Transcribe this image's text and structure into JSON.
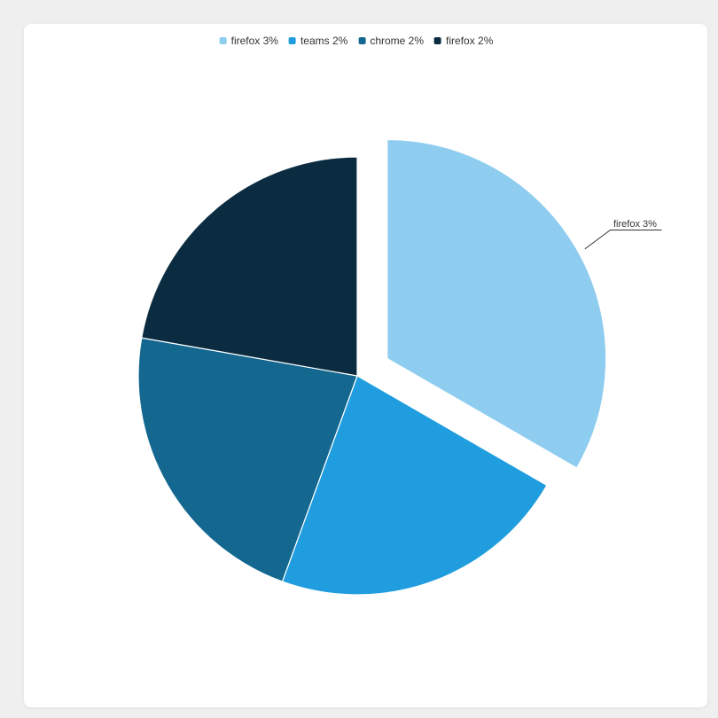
{
  "page": {
    "background_color": "#efefef",
    "card_background_color": "#ffffff",
    "text_color": "#333333"
  },
  "chart_data": {
    "type": "pie",
    "title": "",
    "legend_position": "top",
    "direction": "clockwise",
    "start_angle_deg": 0,
    "categories": [
      "firefox",
      "teams",
      "chrome",
      "firefox"
    ],
    "values": [
      3,
      2,
      2,
      2
    ],
    "slices": [
      {
        "label": "firefox",
        "legend_label": "firefox 3%",
        "value": 3,
        "percent_text": "3%",
        "color": "#8ECDF0",
        "exploded": true
      },
      {
        "label": "teams",
        "legend_label": "teams 2%",
        "value": 2,
        "percent_text": "2%",
        "color": "#1F9DDE",
        "exploded": false
      },
      {
        "label": "chrome",
        "legend_label": "chrome 2%",
        "value": 2,
        "percent_text": "2%",
        "color": "#146890",
        "exploded": false
      },
      {
        "label": "firefox",
        "legend_label": "firefox 2%",
        "value": 2,
        "percent_text": "2%",
        "color": "#0B2C40",
        "exploded": false
      }
    ],
    "callout": {
      "text": "firefox 3%",
      "slice_index": 0
    }
  }
}
